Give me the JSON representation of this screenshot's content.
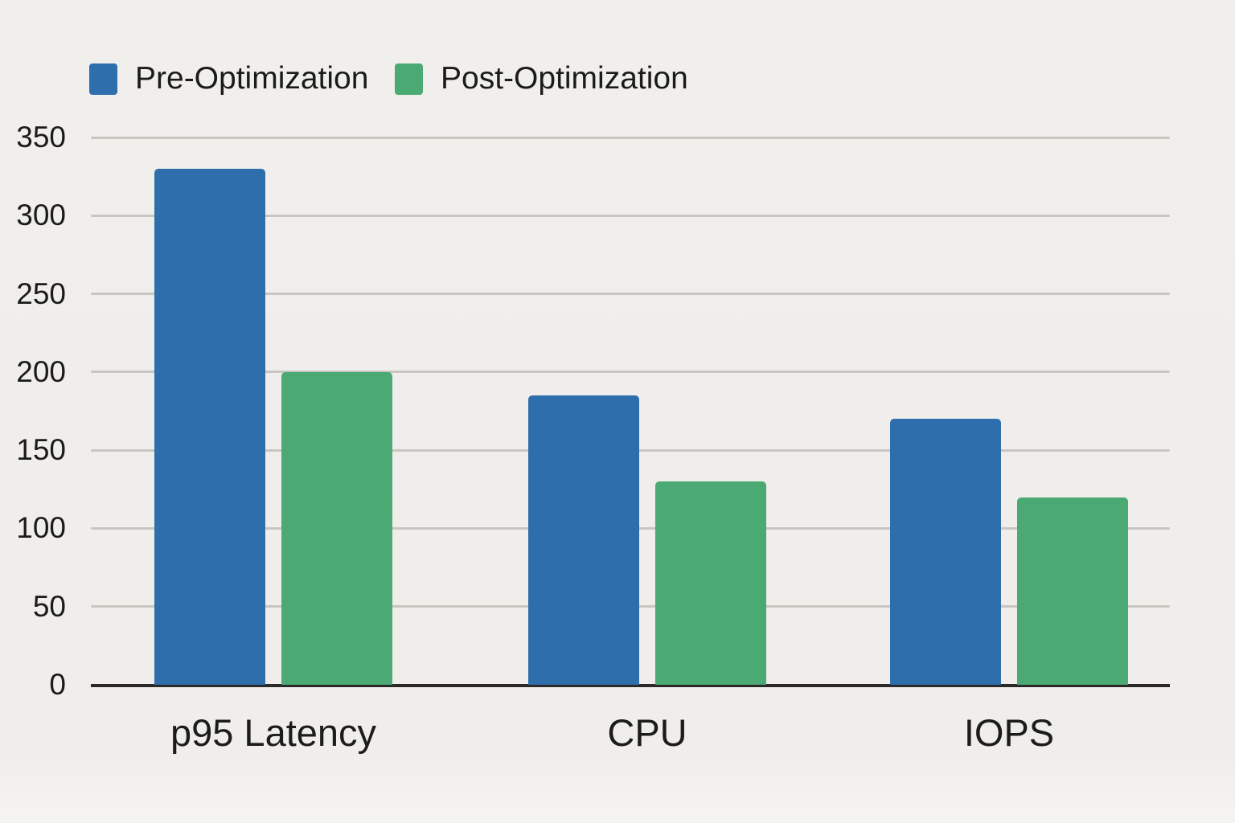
{
  "colors": {
    "background": "#f0eeeb",
    "gridline": "#c9c6c2",
    "axis": "#2b2a28",
    "text": "#1b1b1b"
  },
  "chart_data": {
    "type": "bar",
    "categories": [
      "p95 Latency",
      "CPU",
      "IOPS"
    ],
    "series": [
      {
        "name": "Pre-Optimization",
        "color": "#2e6eac",
        "values": [
          330,
          185,
          170
        ]
      },
      {
        "name": "Post-Optimization",
        "color": "#4ba973",
        "values": [
          200,
          130,
          120
        ]
      }
    ],
    "title": "",
    "xlabel": "",
    "ylabel": "",
    "ylim": [
      0,
      350
    ],
    "yticks": [
      0,
      50,
      100,
      150,
      200,
      250,
      300,
      350
    ],
    "grid": true,
    "legend_position": "top-left"
  }
}
